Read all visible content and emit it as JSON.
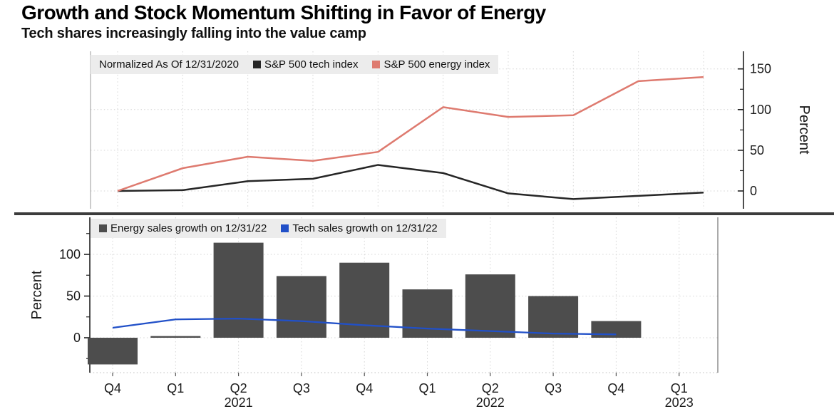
{
  "header": {
    "title": "Growth and Stock Momentum Shifting in Favor of Energy",
    "subtitle": "Tech shares increasingly falling into the value camp"
  },
  "colors": {
    "tech_index_line": "#262626",
    "energy_index_line": "#de7a6f",
    "energy_bars": "#4d4d4d",
    "tech_sales_line": "#2150c8",
    "legend_background": "#ececec",
    "divider": "#3c3c3c",
    "gridline": "#d4d4d4",
    "axis": "#222222"
  },
  "chart_data": [
    {
      "id": "index-performance",
      "type": "line",
      "legend_note": "Normalized As Of 12/31/2020",
      "categories": [
        "Q4 2020",
        "Q1 2021",
        "Q2 2021",
        "Q3 2021",
        "Q4 2021",
        "Q1 2022",
        "Q2 2022",
        "Q3 2022",
        "Q4 2022",
        "Q1 2023"
      ],
      "series": [
        {
          "name": "S&P 500 tech index",
          "color": "#262626",
          "values": [
            0,
            1,
            12,
            15,
            32,
            22,
            -3,
            -10,
            -6,
            -2
          ]
        },
        {
          "name": "S&P 500 energy index",
          "color": "#de7a6f",
          "values": [
            0,
            28,
            42,
            37,
            48,
            103,
            91,
            93,
            135,
            140
          ]
        }
      ],
      "ylabel": "Percent",
      "yaxis_side": "right",
      "yticks": [
        0,
        50,
        100,
        150
      ],
      "minor_yticks": [
        25,
        75,
        125
      ],
      "ylim": [
        -22,
        172
      ],
      "grid": "dotted",
      "legend_position": "top-left"
    },
    {
      "id": "sales-growth",
      "type": "bar",
      "categories": [
        "Q4 2020",
        "Q1 2021",
        "Q2 2021",
        "Q3 2021",
        "Q4 2021",
        "Q1 2022",
        "Q2 2022",
        "Q3 2022",
        "Q4 2022",
        "Q1 2023"
      ],
      "xtick_labels": [
        "Q4",
        "Q1",
        "Q2",
        "Q3",
        "Q4",
        "Q1",
        "Q2",
        "Q3",
        "Q4",
        "Q1"
      ],
      "year_labels": [
        {
          "index": 2,
          "label": "2021"
        },
        {
          "index": 6,
          "label": "2022"
        },
        {
          "index": 9,
          "label": "2023"
        }
      ],
      "series": [
        {
          "name": "Energy sales growth on 12/31/22",
          "render": "bar",
          "color": "#4d4d4d",
          "values": [
            -32,
            2,
            114,
            74,
            90,
            58,
            76,
            50,
            20,
            null
          ]
        },
        {
          "name": "Tech sales growth on 12/31/22",
          "render": "line",
          "color": "#2150c8",
          "values": [
            12,
            22,
            23,
            20,
            15,
            11,
            8,
            5,
            4,
            null
          ]
        }
      ],
      "ylabel": "Percent",
      "yaxis_side": "left",
      "yticks": [
        0,
        50,
        100
      ],
      "minor_yticks": [
        -25,
        25,
        75,
        125
      ],
      "ylim": [
        -45,
        143
      ],
      "grid": "dotted",
      "legend_position": "top-left"
    }
  ]
}
